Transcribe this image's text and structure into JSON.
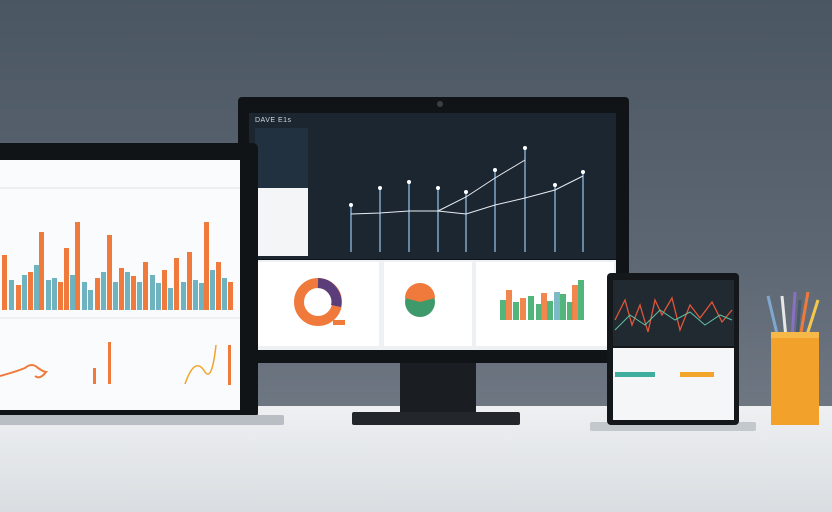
{
  "monitor": {
    "title": "DAVE E1s"
  },
  "colors": {
    "orange": "#f07a3c",
    "teal": "#6fb3c0",
    "green": "#3fae6e",
    "amber": "#f2a42b",
    "dark_screen": "#1c2631",
    "cup": "#f2a22a"
  }
}
